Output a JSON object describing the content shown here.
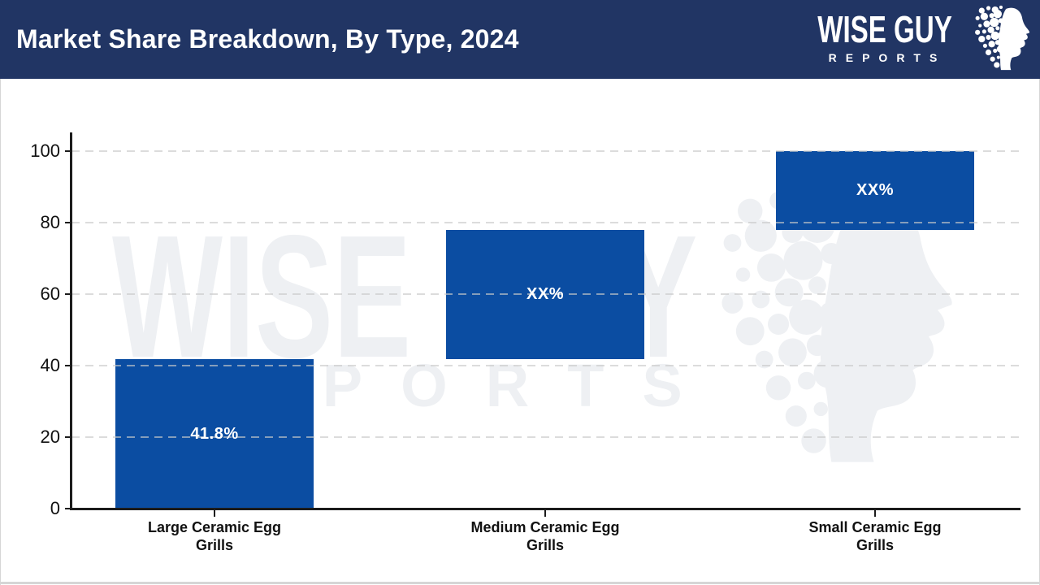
{
  "header": {
    "title": "Market Share Breakdown, By Type, 2024",
    "logo": {
      "line1": "WISE GUY",
      "line2": "REPORTS"
    }
  },
  "watermark": {
    "line1": "WISE GUY",
    "line2": "REPORTS"
  },
  "colors": {
    "header-bg": "#213564",
    "title-color": "#ffffff",
    "bar-fill": "#0b4da2",
    "bar-label": "#ffffff",
    "axis": "#1c1c1c",
    "grid": "#c9c9c9",
    "text": "#111111",
    "watermark": "#eef0f3",
    "page-border": "#d6d6d6"
  },
  "chart_data": {
    "type": "bar",
    "subtype": "stacked-waterfall-percentage",
    "title": "Market Share Breakdown, By Type, 2024",
    "categories": [
      "Large Ceramic Egg Grills",
      "Medium Ceramic Egg Grills",
      "Small Ceramic Egg Grills"
    ],
    "bars": [
      {
        "category_lines": [
          "Large Ceramic Egg",
          "Grills"
        ],
        "start": 0,
        "end": 41.8,
        "label": "41.8%"
      },
      {
        "category_lines": [
          "Medium Ceramic Egg",
          "Grills"
        ],
        "start": 41.8,
        "end": 77.9,
        "label": "XX%"
      },
      {
        "category_lines": [
          "Small Ceramic Egg",
          "Grills"
        ],
        "start": 77.9,
        "end": 100,
        "label": "XX%"
      }
    ],
    "yticks": [
      0,
      20,
      40,
      60,
      80,
      100
    ],
    "ylim": [
      0,
      100
    ],
    "xlabel": "",
    "ylabel": "",
    "grid": "horizontal-dashed",
    "legend": "none",
    "notes": "Values for Medium and Small bars are masked as XX% in the source image"
  }
}
